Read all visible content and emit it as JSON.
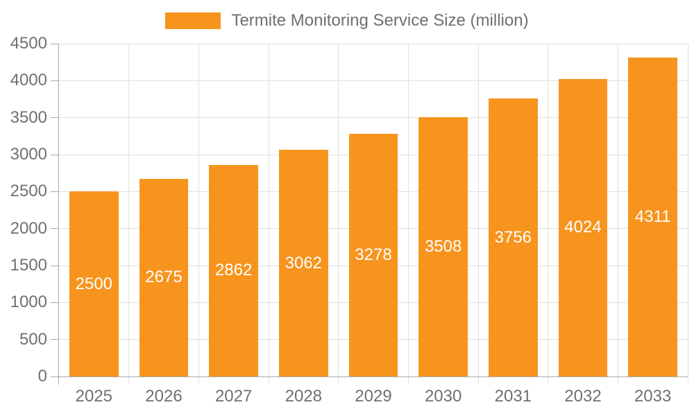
{
  "chart_data": {
    "type": "bar",
    "series_name": "Termite Monitoring Service Size (million)",
    "categories": [
      "2025",
      "2026",
      "2027",
      "2028",
      "2029",
      "2030",
      "2031",
      "2032",
      "2033"
    ],
    "values": [
      2500,
      2675,
      2862,
      3062,
      3278,
      3508,
      3756,
      4024,
      4311
    ],
    "value_labels": [
      "2500",
      "2675",
      "2862",
      "3062",
      "3278",
      "3508",
      "3756",
      "4024",
      "4311"
    ],
    "xlabel": "",
    "ylabel": "",
    "ylim": [
      0,
      4500
    ],
    "y_ticks": [
      0,
      500,
      1000,
      1500,
      2000,
      2500,
      3000,
      3500,
      4000,
      4500
    ],
    "grid": "both",
    "legend_position": "top-center",
    "value_label_position": "center-of-bar",
    "colors": {
      "bar": "#F7941E",
      "grid_line": "#E0E0E0",
      "axis_line": "#A8A8A8",
      "axis_label": "#707070",
      "legend_text": "#6F6F6F",
      "value_label": "#FFFFFF"
    }
  }
}
